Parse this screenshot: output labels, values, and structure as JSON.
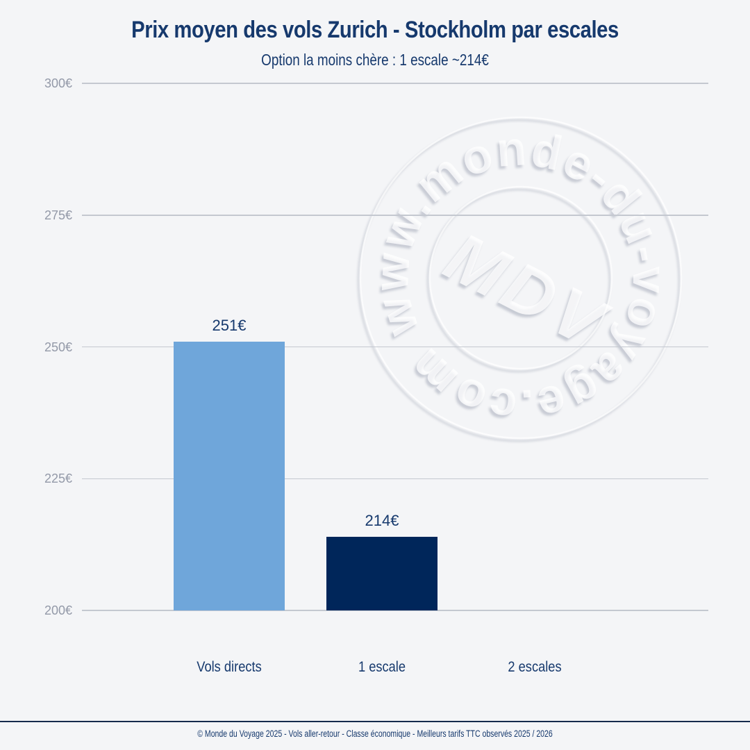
{
  "title": "Prix moyen des vols Zurich - Stockholm par escales",
  "subtitle": "Option la moins chère : 1 escale ~214€",
  "watermark": {
    "ring_text": "www.monde-du-voyage.com ·",
    "monogram": "MDV"
  },
  "footer": "© Monde du Voyage 2025 - Vols aller-retour - Classe économique - Meilleurs tarifs TTC observés 2025 / 2026",
  "colors": {
    "background": "#f4f5f7",
    "navy_text": "#16396d",
    "axis_text": "#9399a8",
    "gridline": "#c4c8d0",
    "footer_rule": "#152a4c"
  },
  "chart_data": {
    "type": "bar",
    "title": "Prix moyen des vols Zurich - Stockholm par escales",
    "subtitle": "Option la moins chère : 1 escale ~214€",
    "categories": [
      "Vols directs",
      "1 escale",
      "2 escales"
    ],
    "values": [
      251,
      214,
      null
    ],
    "value_labels": [
      "251€",
      "214€",
      null
    ],
    "bar_colors": [
      "#6fa6da",
      "#00265a",
      null
    ],
    "y_ticks": [
      {
        "label": "300€",
        "value": 300
      },
      {
        "label": "275€",
        "value": 275
      },
      {
        "label": "250€",
        "value": 250
      },
      {
        "label": "225€",
        "value": 225
      },
      {
        "label": "200€",
        "value": 200
      }
    ],
    "ylim": [
      200,
      300
    ],
    "xlabel": "",
    "ylabel": "",
    "grid": true,
    "legend": false
  }
}
